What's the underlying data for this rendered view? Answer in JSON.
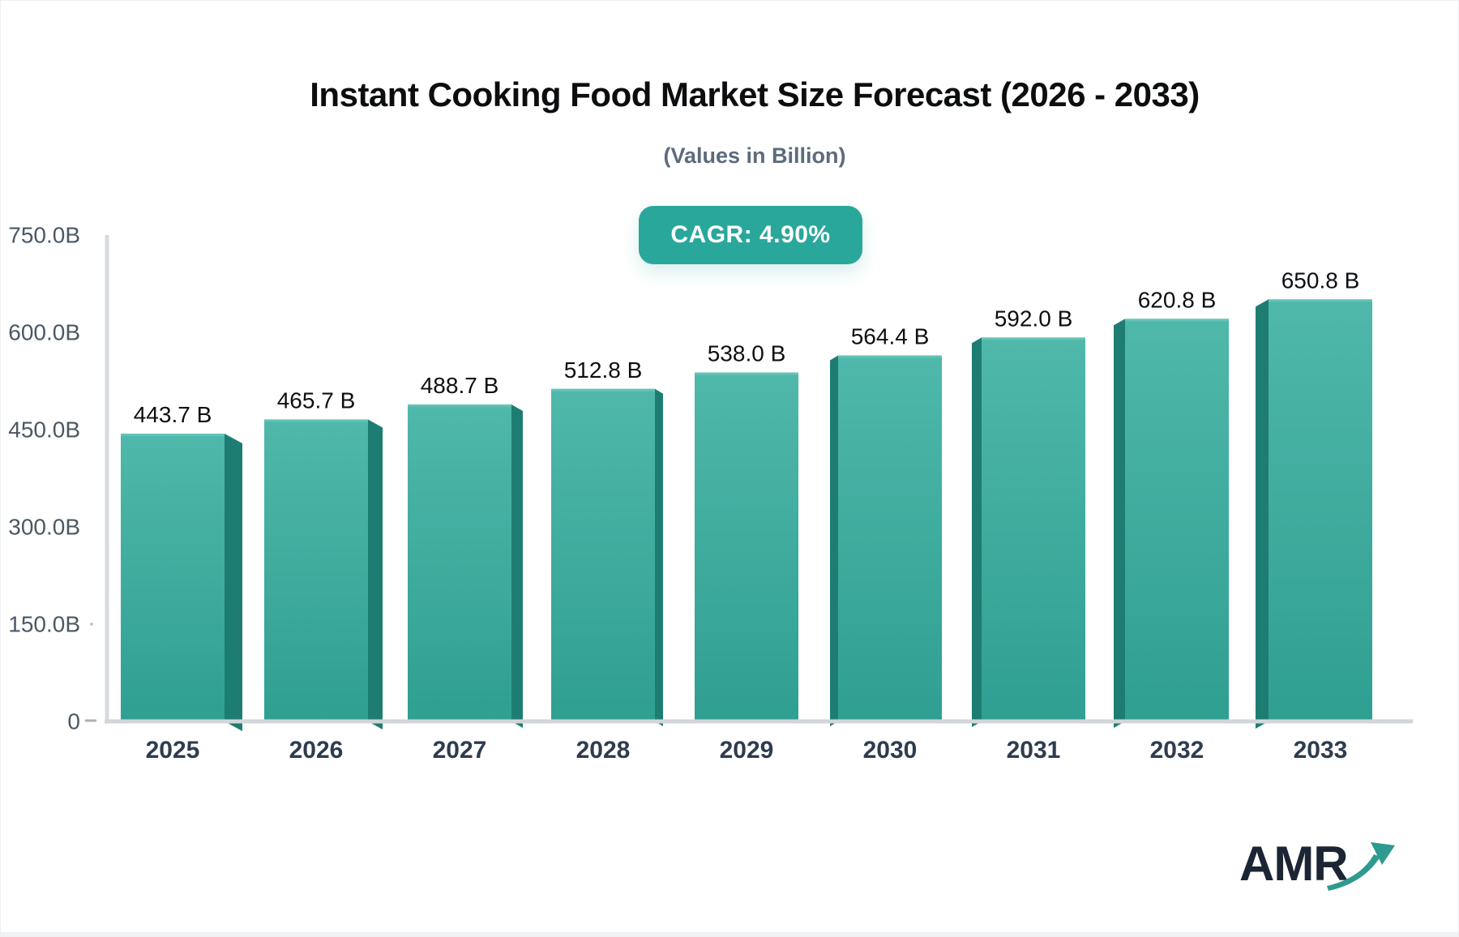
{
  "title": "Instant Cooking Food Market Size Forecast (2026 - 2033)",
  "subtitle": "(Values in Billion)",
  "cagr_badge": "CAGR: 4.90%",
  "logo": {
    "text": "AMR",
    "arrow_icon": "trend-up-arrow"
  },
  "colors": {
    "accent": "#2aa79b",
    "badge_text": "#ffffff",
    "title": "#0b0d0f",
    "subtitle": "#5c6b7c",
    "bar_top": "#4fb8aa",
    "bar_bottom": "#2f9f92",
    "bar_edge_highlight": "#63c3b5",
    "bar_side": "#1e7d72",
    "axis_line": "#d7dbe0",
    "baseline": "#d2d6da",
    "y_label": "#4b5865",
    "x_label": "#2e3c4e",
    "value_label": "#0d1013",
    "logo_text": "#1b2533",
    "logo_arrow": "#2f9a8f"
  },
  "chart_data": {
    "type": "bar",
    "title": "Instant Cooking Food Market Size Forecast (2026 - 2033)",
    "subtitle": "(Values in Billion)",
    "cagr_annotation": "CAGR: 4.90%",
    "categories": [
      "2025",
      "2026",
      "2027",
      "2028",
      "2029",
      "2030",
      "2031",
      "2032",
      "2033"
    ],
    "values": [
      443.7,
      465.7,
      488.7,
      512.8,
      538.0,
      564.4,
      592.0,
      620.8,
      650.8
    ],
    "value_labels": [
      "443.7 B",
      "465.7 B",
      "488.7 B",
      "512.8 B",
      "538.0 B",
      "564.4 B",
      "592.0 B",
      "620.8 B",
      "650.8 B"
    ],
    "unit": "Billion",
    "xlabel": "",
    "ylabel": "",
    "ylim": [
      0,
      750
    ],
    "grid": false,
    "legend": false,
    "style": "3d-bars",
    "y_ticks": [
      {
        "label": "750.0B",
        "value": 750
      },
      {
        "label": "600.0B",
        "value": 600
      },
      {
        "label": "450.0B",
        "value": 450
      },
      {
        "label": "300.0B",
        "value": 300
      },
      {
        "label": "150.0B",
        "value": 150
      },
      {
        "label": "0",
        "value": 0
      }
    ]
  }
}
